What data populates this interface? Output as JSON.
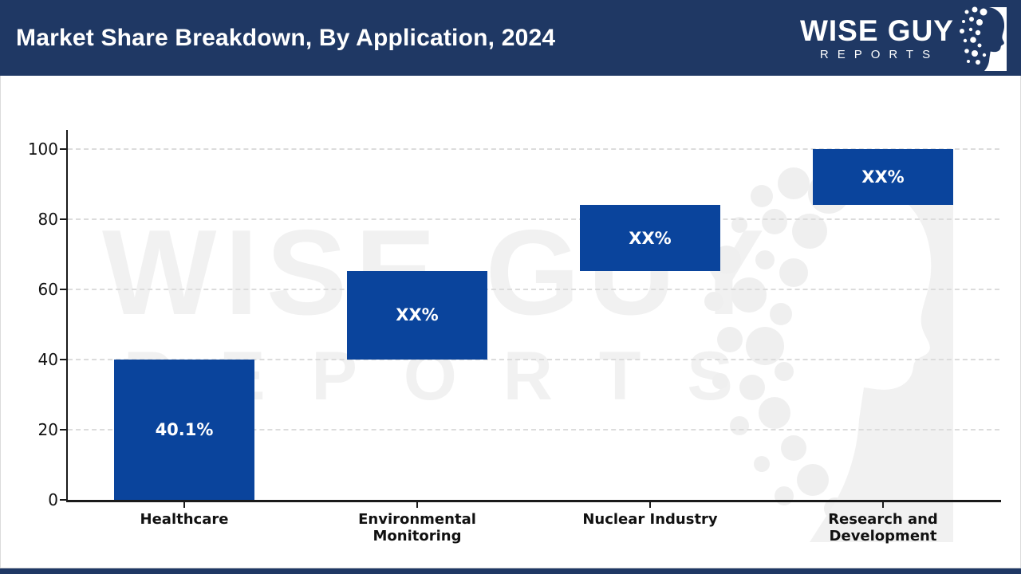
{
  "header": {
    "title": "Market Share Breakdown, By Application, 2024",
    "logo": {
      "line1": "WISE GUY",
      "line2": "REPORTS"
    }
  },
  "watermark": {
    "line1": "WISE GUY",
    "line2": "REPORTS"
  },
  "chart_data": {
    "type": "bar",
    "variant": "waterfall-segments",
    "title": "Market Share Breakdown, By Application, 2024",
    "categories": [
      "Healthcare",
      "Environmental Monitoring",
      "Nuclear Industry",
      "Research and Development"
    ],
    "bars": [
      {
        "category": "Healthcare",
        "label_lines": [
          "Healthcare"
        ],
        "start": 0,
        "end": 40.1,
        "label": "40.1%"
      },
      {
        "category": "Environmental Monitoring",
        "label_lines": [
          "Environmental",
          "Monitoring"
        ],
        "start": 40.1,
        "end": 65.2,
        "label": "XX%"
      },
      {
        "category": "Nuclear Industry",
        "label_lines": [
          "Nuclear Industry"
        ],
        "start": 65.2,
        "end": 84.1,
        "label": "XX%"
      },
      {
        "category": "Research and Development",
        "label_lines": [
          "Research and",
          "Development"
        ],
        "start": 84.1,
        "end": 100,
        "label": "XX%"
      }
    ],
    "ylim": [
      0,
      100
    ],
    "yticks": [
      0,
      20,
      40,
      60,
      80,
      100
    ],
    "xlabel": "",
    "ylabel": "",
    "grid": "horizontal-dashed",
    "legend": "none"
  },
  "colors": {
    "header_bg": "#1F3864",
    "footer_bg": "#1F3864",
    "bar": "#0A449C",
    "bar_label": "#FFFFFF",
    "grid": "#DCDCDC",
    "axis": "#1A1A1A",
    "tick_label": "#111111",
    "watermark": "#F1F1F1"
  }
}
